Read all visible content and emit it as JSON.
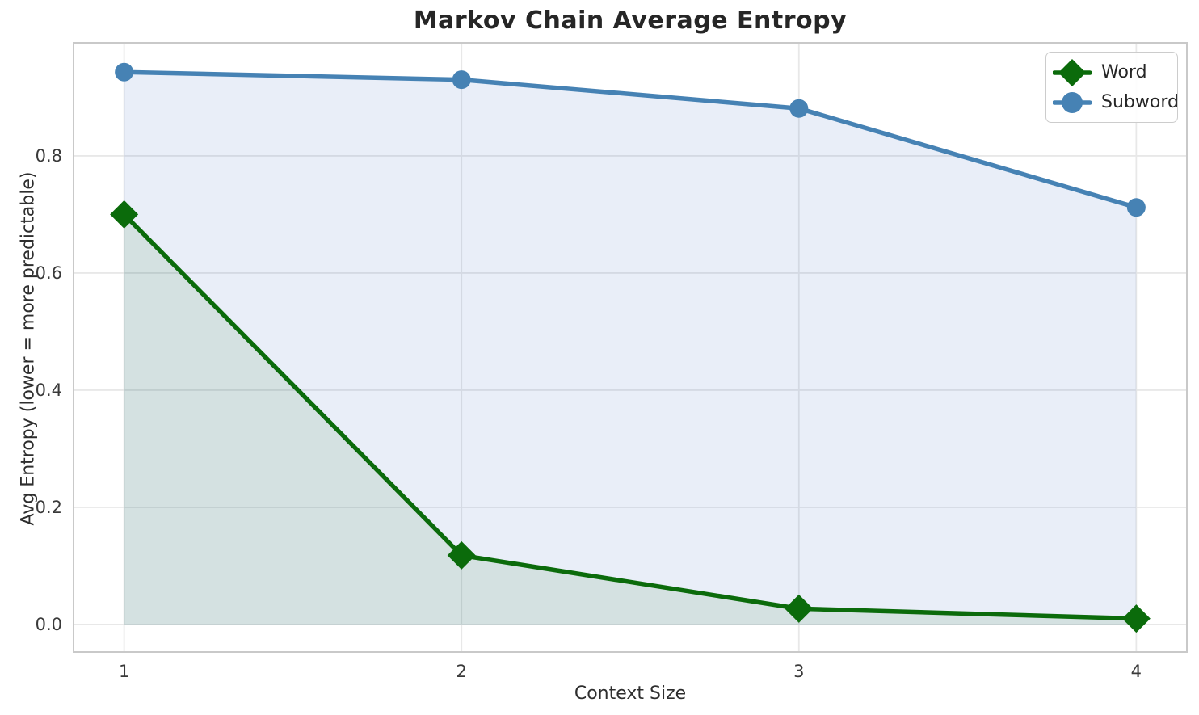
{
  "title": "Markov Chain Average Entropy",
  "chart_data": {
    "type": "line",
    "x": [
      1,
      2,
      3,
      4
    ],
    "series": [
      {
        "name": "Subword",
        "marker": "circle",
        "color": "#4682b4",
        "fill_rgba": "rgba(72,113,197,0.12)",
        "values": [
          0.943,
          0.93,
          0.881,
          0.712
        ]
      },
      {
        "name": "Word",
        "marker": "diamond",
        "color": "#0b6b0b",
        "fill_rgba": "rgba(0,100,0,0.09)",
        "values": [
          0.7,
          0.118,
          0.027,
          0.01
        ]
      }
    ],
    "legend_order": [
      "Word",
      "Subword"
    ],
    "xlabel": "Context Size",
    "ylabel": "Avg Entropy (lower = more predictable)",
    "x_tick_labels": [
      "1",
      "2",
      "3",
      "4"
    ],
    "y_ticks": [
      0.0,
      0.2,
      0.4,
      0.6,
      0.8
    ],
    "xlim": [
      0.85,
      4.15
    ],
    "ylim": [
      -0.047,
      0.993
    ],
    "grid": true,
    "area_fill_to": 0,
    "legend_position": "upper right"
  },
  "style": {
    "grid_color": "#e8e8e8",
    "frame_color": "#c9c9c9",
    "tick_label_color": "#3a3a3a",
    "plot_bg": "#ffffff"
  }
}
